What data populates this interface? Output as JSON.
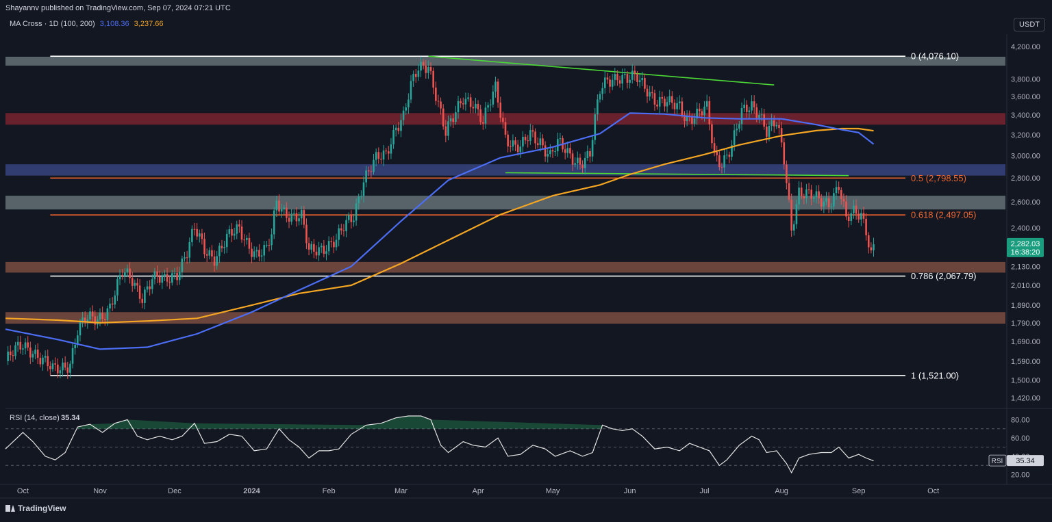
{
  "header": {
    "published": "Shayannv published on TradingView.com, Sep 07, 2024 07:21 UTC",
    "indicator_name": "MA Cross · 1D (100, 200)",
    "ma100_value": "3,108.36",
    "ma200_value": "3,237.66",
    "currency": "USDT"
  },
  "footer": {
    "brand": "TradingView"
  },
  "colors": {
    "background": "#131722",
    "up_candle": "#26a69a",
    "down_candle": "#ef5350",
    "ma100": "#4c6ef5",
    "ma200": "#f5a623",
    "trendline": "#4cd937",
    "fib_orange": "#f0652f",
    "fib_white": "#ffffff",
    "rsi_line": "#e6e6e6",
    "price_badge": "#1a9c7e"
  },
  "chart_data": {
    "type": "candlestick",
    "symbol_timeframe": "1D",
    "y_scale": "log",
    "ylim": [
      1380,
      4290
    ],
    "yticks": [
      1420,
      1500,
      1590,
      1690,
      1790,
      1890,
      2010,
      2130,
      2400,
      2600,
      2800,
      3000,
      3200,
      3400,
      3600,
      3800,
      4200
    ],
    "yticks_labels": [
      "1,420.00",
      "1,500.00",
      "1,590.00",
      "1,690.00",
      "1,790.00",
      "1,890.00",
      "2,010.00",
      "2,130.00",
      "2,400.00",
      "2,600.00",
      "2,800.00",
      "3,000.00",
      "3,200.00",
      "3,400.00",
      "3,600.00",
      "3,800.00",
      "4,200.00"
    ],
    "x_range": [
      "2023-09-24",
      "2024-10-30"
    ],
    "xticks": [
      {
        "label": "Oct",
        "date": "2023-10-01",
        "bold": false
      },
      {
        "label": "Nov",
        "date": "2023-11-01",
        "bold": false
      },
      {
        "label": "Dec",
        "date": "2023-12-01",
        "bold": false
      },
      {
        "label": "2024",
        "date": "2024-01-01",
        "bold": true
      },
      {
        "label": "Feb",
        "date": "2024-02-01",
        "bold": false
      },
      {
        "label": "Mar",
        "date": "2024-03-01",
        "bold": false
      },
      {
        "label": "Apr",
        "date": "2024-04-01",
        "bold": false
      },
      {
        "label": "May",
        "date": "2024-05-01",
        "bold": false
      },
      {
        "label": "Jun",
        "date": "2024-06-01",
        "bold": false
      },
      {
        "label": "Jul",
        "date": "2024-07-01",
        "bold": false
      },
      {
        "label": "Aug",
        "date": "2024-08-01",
        "bold": false
      },
      {
        "label": "Sep",
        "date": "2024-09-01",
        "bold": false
      },
      {
        "label": "Oct",
        "date": "2024-10-01",
        "bold": false
      }
    ],
    "close_series": {
      "name": "ETHUSDT close (approx.)",
      "points": [
        [
          "2023-09-24",
          1590
        ],
        [
          "2023-10-01",
          1670
        ],
        [
          "2023-10-05",
          1650
        ],
        [
          "2023-10-10",
          1580
        ],
        [
          "2023-10-13",
          1540
        ],
        [
          "2023-10-16",
          1555
        ],
        [
          "2023-10-20",
          1590
        ],
        [
          "2023-10-23",
          1750
        ],
        [
          "2023-10-26",
          1800
        ],
        [
          "2023-10-31",
          1810
        ],
        [
          "2023-11-05",
          1890
        ],
        [
          "2023-11-10",
          2080
        ],
        [
          "2023-11-14",
          2040
        ],
        [
          "2023-11-18",
          1950
        ],
        [
          "2023-11-22",
          2050
        ],
        [
          "2023-11-27",
          2030
        ],
        [
          "2023-12-02",
          2100
        ],
        [
          "2023-12-06",
          2230
        ],
        [
          "2023-12-09",
          2380
        ],
        [
          "2023-12-13",
          2240
        ],
        [
          "2023-12-17",
          2200
        ],
        [
          "2023-12-22",
          2320
        ],
        [
          "2023-12-27",
          2380
        ],
        [
          "2023-12-31",
          2280
        ],
        [
          "2024-01-03",
          2220
        ],
        [
          "2024-01-07",
          2230
        ],
        [
          "2024-01-09",
          2340
        ],
        [
          "2024-01-11",
          2600
        ],
        [
          "2024-01-13",
          2550
        ],
        [
          "2024-01-17",
          2500
        ],
        [
          "2024-01-21",
          2470
        ],
        [
          "2024-01-24",
          2220
        ],
        [
          "2024-01-27",
          2250
        ],
        [
          "2024-01-31",
          2280
        ],
        [
          "2024-02-04",
          2300
        ],
        [
          "2024-02-08",
          2420
        ],
        [
          "2024-02-11",
          2500
        ],
        [
          "2024-02-15",
          2800
        ],
        [
          "2024-02-20",
          2950
        ],
        [
          "2024-02-24",
          3000
        ],
        [
          "2024-02-28",
          3300
        ],
        [
          "2024-03-02",
          3400
        ],
        [
          "2024-03-05",
          3700
        ],
        [
          "2024-03-08",
          3900
        ],
        [
          "2024-03-12",
          3980
        ],
        [
          "2024-03-15",
          3650
        ],
        [
          "2024-03-19",
          3200
        ],
        [
          "2024-03-22",
          3350
        ],
        [
          "2024-03-26",
          3600
        ],
        [
          "2024-03-30",
          3550
        ],
        [
          "2024-04-03",
          3300
        ],
        [
          "2024-04-08",
          3700
        ],
        [
          "2024-04-12",
          3200
        ],
        [
          "2024-04-15",
          3100
        ],
        [
          "2024-04-18",
          3050
        ],
        [
          "2024-04-22",
          3200
        ],
        [
          "2024-04-26",
          3150
        ],
        [
          "2024-04-30",
          3000
        ],
        [
          "2024-05-03",
          3100
        ],
        [
          "2024-05-08",
          3000
        ],
        [
          "2024-05-12",
          2950
        ],
        [
          "2024-05-16",
          3000
        ],
        [
          "2024-05-20",
          3650
        ],
        [
          "2024-05-23",
          3800
        ],
        [
          "2024-05-27",
          3850
        ],
        [
          "2024-05-31",
          3780
        ],
        [
          "2024-06-04",
          3800
        ],
        [
          "2024-06-08",
          3700
        ],
        [
          "2024-06-12",
          3550
        ],
        [
          "2024-06-17",
          3500
        ],
        [
          "2024-06-21",
          3500
        ],
        [
          "2024-06-24",
          3380
        ],
        [
          "2024-06-28",
          3400
        ],
        [
          "2024-07-02",
          3450
        ],
        [
          "2024-07-05",
          3000
        ],
        [
          "2024-07-08",
          2950
        ],
        [
          "2024-07-12",
          3100
        ],
        [
          "2024-07-16",
          3400
        ],
        [
          "2024-07-20",
          3500
        ],
        [
          "2024-07-23",
          3450
        ],
        [
          "2024-07-26",
          3250
        ],
        [
          "2024-07-30",
          3300
        ],
        [
          "2024-08-02",
          2950
        ],
        [
          "2024-08-05",
          2400
        ],
        [
          "2024-08-08",
          2700
        ],
        [
          "2024-08-12",
          2650
        ],
        [
          "2024-08-16",
          2600
        ],
        [
          "2024-08-20",
          2600
        ],
        [
          "2024-08-24",
          2750
        ],
        [
          "2024-08-27",
          2450
        ],
        [
          "2024-08-30",
          2500
        ],
        [
          "2024-09-02",
          2500
        ],
        [
          "2024-09-04",
          2400
        ],
        [
          "2024-09-06",
          2230
        ],
        [
          "2024-09-07",
          2282
        ]
      ]
    },
    "ma100": {
      "name": "MA 100",
      "points": [
        [
          "2023-09-24",
          1755
        ],
        [
          "2023-10-15",
          1700
        ],
        [
          "2023-11-01",
          1650
        ],
        [
          "2023-11-20",
          1660
        ],
        [
          "2023-12-10",
          1730
        ],
        [
          "2024-01-01",
          1850
        ],
        [
          "2024-01-20",
          1980
        ],
        [
          "2024-02-10",
          2130
        ],
        [
          "2024-03-01",
          2450
        ],
        [
          "2024-03-20",
          2780
        ],
        [
          "2024-04-10",
          2980
        ],
        [
          "2024-05-01",
          3080
        ],
        [
          "2024-05-20",
          3210
        ],
        [
          "2024-06-01",
          3420
        ],
        [
          "2024-06-15",
          3410
        ],
        [
          "2024-07-01",
          3370
        ],
        [
          "2024-07-15",
          3360
        ],
        [
          "2024-08-01",
          3360
        ],
        [
          "2024-08-15",
          3300
        ],
        [
          "2024-08-25",
          3250
        ],
        [
          "2024-09-01",
          3220
        ],
        [
          "2024-09-07",
          3108
        ]
      ]
    },
    "ma200": {
      "name": "MA 200",
      "points": [
        [
          "2023-09-24",
          1815
        ],
        [
          "2023-10-15",
          1805
        ],
        [
          "2023-11-01",
          1790
        ],
        [
          "2023-11-20",
          1800
        ],
        [
          "2023-12-10",
          1815
        ],
        [
          "2024-01-01",
          1890
        ],
        [
          "2024-01-20",
          1960
        ],
        [
          "2024-02-10",
          2010
        ],
        [
          "2024-03-01",
          2150
        ],
        [
          "2024-03-20",
          2310
        ],
        [
          "2024-04-10",
          2500
        ],
        [
          "2024-05-01",
          2650
        ],
        [
          "2024-05-20",
          2740
        ],
        [
          "2024-06-01",
          2830
        ],
        [
          "2024-06-15",
          2920
        ],
        [
          "2024-07-01",
          3010
        ],
        [
          "2024-07-15",
          3100
        ],
        [
          "2024-08-01",
          3190
        ],
        [
          "2024-08-15",
          3240
        ],
        [
          "2024-08-25",
          3260
        ],
        [
          "2024-09-01",
          3260
        ],
        [
          "2024-09-07",
          3238
        ]
      ]
    },
    "horizontal_zones": [
      {
        "low": 3960,
        "high": 4070,
        "color": "#8fa3a3"
      },
      {
        "low": 3300,
        "high": 3420,
        "color": "#b02a37"
      },
      {
        "low": 2820,
        "high": 2920,
        "color": "#4a5db0"
      },
      {
        "low": 2540,
        "high": 2650,
        "color": "#8fa3a3"
      },
      {
        "low": 2090,
        "high": 2160,
        "color": "#b56a50"
      },
      {
        "low": 1785,
        "high": 1850,
        "color": "#b56a50"
      }
    ],
    "fibonacci_levels": [
      {
        "ratio": "0",
        "price": 4076.1,
        "label": "0 (4,076.10)",
        "color": "white"
      },
      {
        "ratio": "0.5",
        "price": 2798.55,
        "label": "0.5 (2,798.55)",
        "color": "orange"
      },
      {
        "ratio": "0.618",
        "price": 2497.05,
        "label": "0.618 (2,497.05)",
        "color": "orange"
      },
      {
        "ratio": "0.786",
        "price": 2067.79,
        "label": "0.786 (2,067.79)",
        "color": "white"
      },
      {
        "ratio": "1",
        "price": 1521.0,
        "label": "1 (1,521.00)",
        "color": "white"
      }
    ],
    "fib_start_date": "2023-10-12",
    "trendlines": [
      {
        "from": [
          "2024-03-12",
          4076
        ],
        "to": [
          "2024-07-29",
          3730
        ]
      },
      {
        "from": [
          "2024-04-12",
          2845
        ],
        "to": [
          "2024-08-28",
          2820
        ]
      }
    ],
    "current_price": {
      "value": "2,282.03",
      "countdown": "16:38:20",
      "price": 2282.03
    },
    "rsi": {
      "label": "RSI (14, close)",
      "value": "35.34",
      "badge": "RSI",
      "period": 14,
      "ylim": [
        10,
        90
      ],
      "yticks": [
        20,
        40,
        60,
        80
      ],
      "yticks_labels": [
        "20.00",
        "40.00",
        "60.00",
        "80.00"
      ],
      "bands": [
        30,
        50,
        70
      ],
      "points": [
        [
          "2023-09-24",
          48
        ],
        [
          "2023-10-01",
          66
        ],
        [
          "2023-10-05",
          56
        ],
        [
          "2023-10-10",
          40
        ],
        [
          "2023-10-14",
          36
        ],
        [
          "2023-10-18",
          44
        ],
        [
          "2023-10-23",
          72
        ],
        [
          "2023-10-28",
          75
        ],
        [
          "2023-11-02",
          66
        ],
        [
          "2023-11-07",
          76
        ],
        [
          "2023-11-12",
          80
        ],
        [
          "2023-11-16",
          62
        ],
        [
          "2023-11-20",
          58
        ],
        [
          "2023-11-25",
          62
        ],
        [
          "2023-11-30",
          58
        ],
        [
          "2023-12-04",
          62
        ],
        [
          "2023-12-09",
          76
        ],
        [
          "2023-12-13",
          54
        ],
        [
          "2023-12-18",
          56
        ],
        [
          "2023-12-23",
          64
        ],
        [
          "2023-12-28",
          62
        ],
        [
          "2024-01-02",
          46
        ],
        [
          "2024-01-07",
          48
        ],
        [
          "2024-01-12",
          70
        ],
        [
          "2024-01-16",
          58
        ],
        [
          "2024-01-20",
          50
        ],
        [
          "2024-01-24",
          38
        ],
        [
          "2024-01-28",
          46
        ],
        [
          "2024-02-01",
          46
        ],
        [
          "2024-02-05",
          48
        ],
        [
          "2024-02-10",
          64
        ],
        [
          "2024-02-16",
          74
        ],
        [
          "2024-02-22",
          76
        ],
        [
          "2024-02-28",
          82
        ],
        [
          "2024-03-04",
          84
        ],
        [
          "2024-03-09",
          84
        ],
        [
          "2024-03-13",
          80
        ],
        [
          "2024-03-17",
          52
        ],
        [
          "2024-03-20",
          44
        ],
        [
          "2024-03-26",
          56
        ],
        [
          "2024-03-30",
          52
        ],
        [
          "2024-04-04",
          50
        ],
        [
          "2024-04-09",
          60
        ],
        [
          "2024-04-13",
          40
        ],
        [
          "2024-04-18",
          42
        ],
        [
          "2024-04-23",
          52
        ],
        [
          "2024-04-28",
          48
        ],
        [
          "2024-05-02",
          40
        ],
        [
          "2024-05-08",
          46
        ],
        [
          "2024-05-13",
          40
        ],
        [
          "2024-05-17",
          44
        ],
        [
          "2024-05-21",
          74
        ],
        [
          "2024-05-25",
          70
        ],
        [
          "2024-05-29",
          68
        ],
        [
          "2024-06-02",
          70
        ],
        [
          "2024-06-06",
          62
        ],
        [
          "2024-06-11",
          48
        ],
        [
          "2024-06-16",
          50
        ],
        [
          "2024-06-21",
          46
        ],
        [
          "2024-06-25",
          54
        ],
        [
          "2024-06-29",
          50
        ],
        [
          "2024-07-03",
          46
        ],
        [
          "2024-07-07",
          30
        ],
        [
          "2024-07-10",
          36
        ],
        [
          "2024-07-15",
          52
        ],
        [
          "2024-07-20",
          62
        ],
        [
          "2024-07-23",
          58
        ],
        [
          "2024-07-26",
          44
        ],
        [
          "2024-07-30",
          46
        ],
        [
          "2024-08-03",
          32
        ],
        [
          "2024-08-05",
          22
        ],
        [
          "2024-08-08",
          38
        ],
        [
          "2024-08-12",
          42
        ],
        [
          "2024-08-17",
          44
        ],
        [
          "2024-08-21",
          44
        ],
        [
          "2024-08-24",
          50
        ],
        [
          "2024-08-28",
          38
        ],
        [
          "2024-09-01",
          42
        ],
        [
          "2024-09-04",
          38
        ],
        [
          "2024-09-07",
          35
        ]
      ]
    }
  }
}
